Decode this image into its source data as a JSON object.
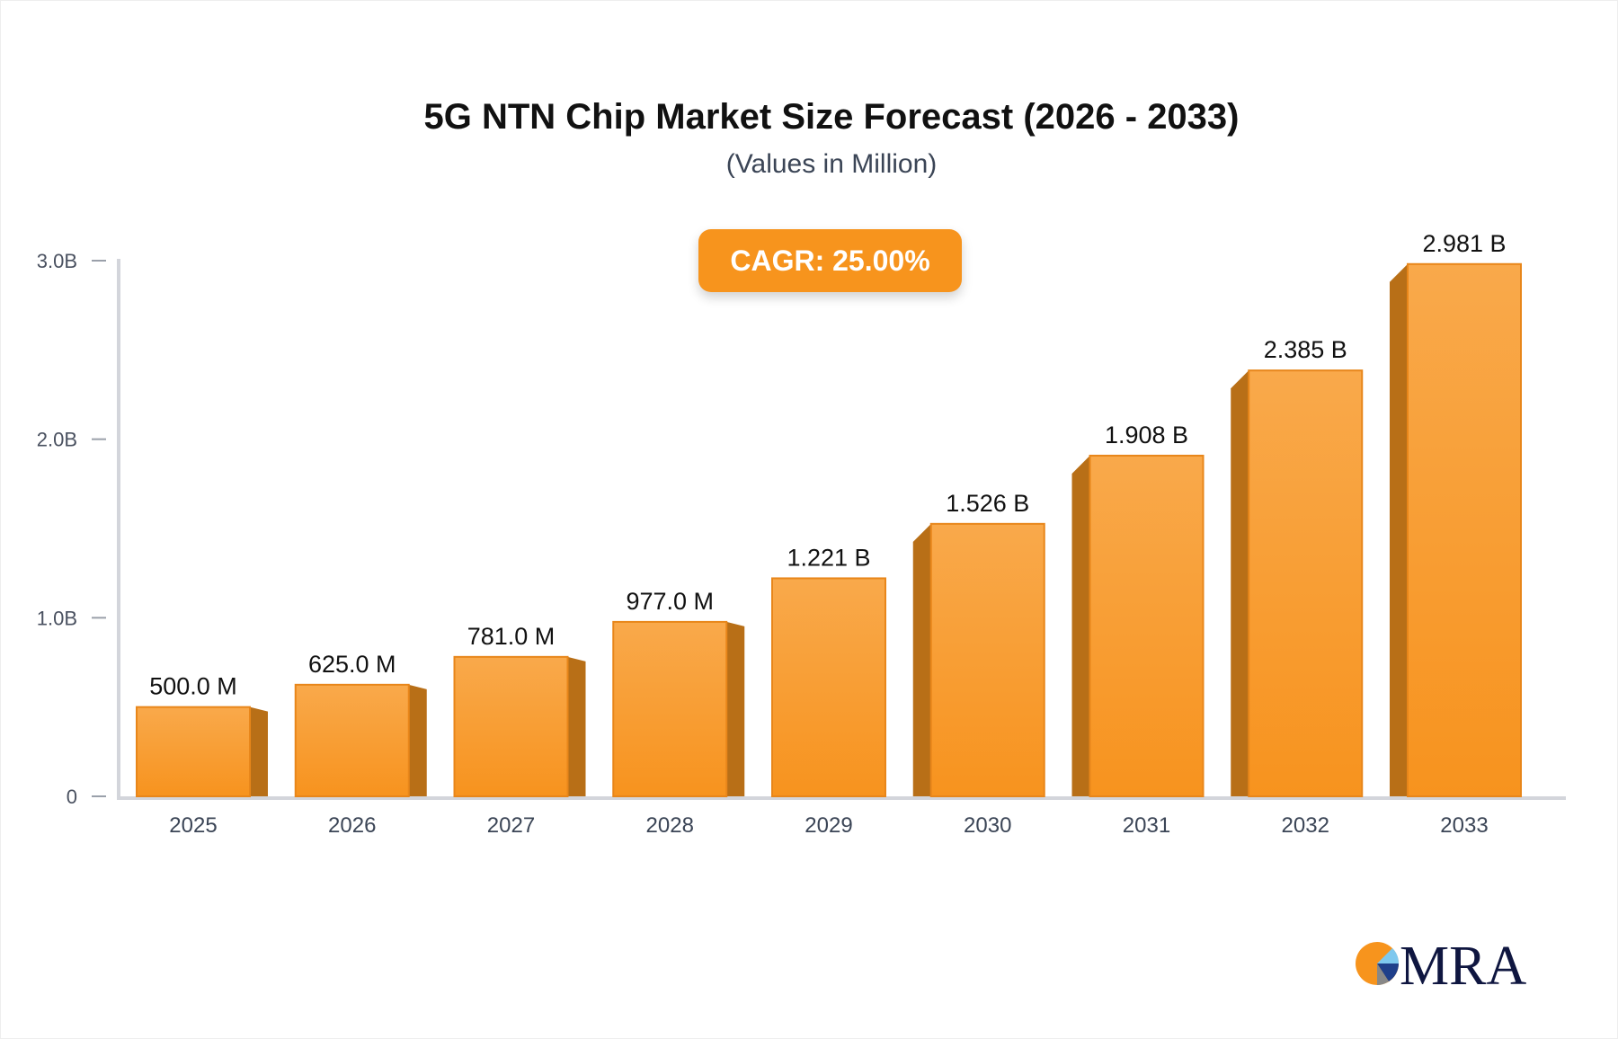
{
  "chart_data": {
    "type": "bar",
    "title": "5G NTN Chip Market Size Forecast (2026 - 2033)",
    "subtitle": "(Values in Million)",
    "annotation": "CAGR: 25.00%",
    "categories": [
      "2025",
      "2026",
      "2027",
      "2028",
      "2029",
      "2030",
      "2031",
      "2032",
      "2033"
    ],
    "values": [
      500.0,
      625.0,
      781.0,
      977.0,
      1221,
      1526,
      1908,
      2385,
      2981
    ],
    "data_labels": [
      "500.0 M",
      "625.0 M",
      "781.0 M",
      "977.0 M",
      "1.221 B",
      "1.526 B",
      "1.908 B",
      "2.385 B",
      "2.981 B"
    ],
    "yticks": [
      0,
      1000,
      2000,
      3000
    ],
    "ytick_labels": [
      "0",
      "1.0B",
      "2.0B",
      "3.0B"
    ],
    "ylim": [
      0,
      3000
    ],
    "grid": false,
    "legend": "none",
    "colors": {
      "bar_top": "#f9a94b",
      "bar_bottom": "#f7931e",
      "bar_side": "#b86f17",
      "badge": "#f7941d"
    }
  },
  "logo": {
    "text": "MRA"
  }
}
